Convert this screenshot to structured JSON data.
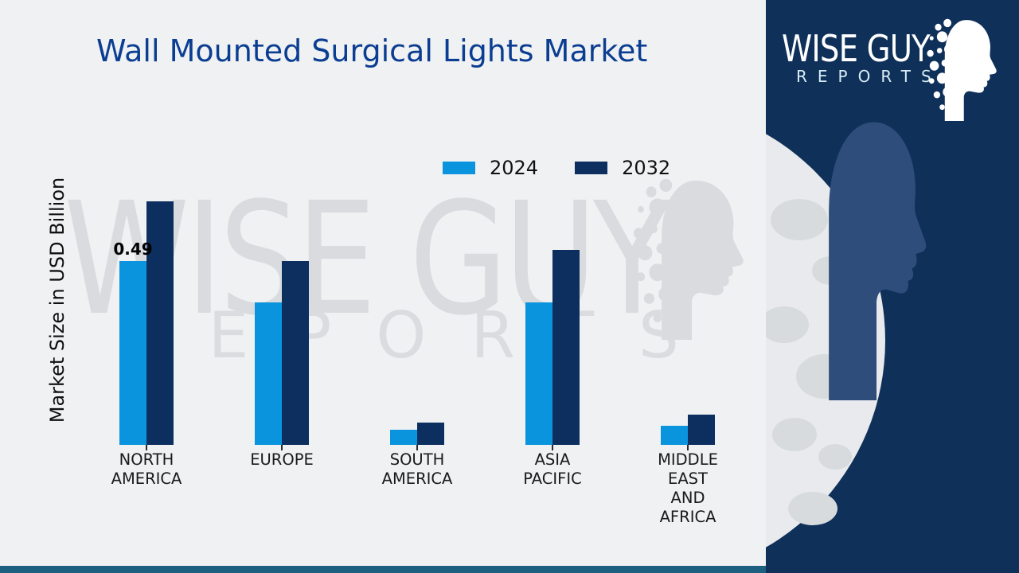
{
  "title": "Wall Mounted Surgical Lights Market",
  "ylabel": "Market Size in USD Billion",
  "watermark": {
    "line1": "WISE GUY",
    "line2": "REPORTS"
  },
  "brand": {
    "name": "WISE GUY",
    "subtitle": "REPORTS",
    "panel_color": "#0e3059",
    "strip_color": "#1d5f80"
  },
  "colors": {
    "background": "#f0f1f2",
    "title_text": "#0b3e92",
    "series_2024": "#0a94dd",
    "series_2032": "#0d2f60",
    "watermark": "#d9dbde"
  },
  "icons": {
    "brand_logo_face": "face-profile-dots-icon",
    "panel_face": "face-profile-silhouette-icon",
    "watermark_dots": "face-profile-dots-icon"
  },
  "chart_data": {
    "type": "bar",
    "title": "Wall Mounted Surgical Lights Market",
    "xlabel": "",
    "ylabel": "Market Size in USD Billion",
    "categories": [
      "NORTH AMERICA",
      "EUROPE",
      "SOUTH AMERICA",
      "ASIA PACIFIC",
      "MIDDLE EAST AND AFRICA"
    ],
    "series": [
      {
        "name": "2024",
        "color": "#0a94dd",
        "values": [
          0.49,
          0.38,
          0.04,
          0.38,
          0.05
        ]
      },
      {
        "name": "2032",
        "color": "#0d2f60",
        "values": [
          0.65,
          0.49,
          0.06,
          0.52,
          0.08
        ]
      }
    ],
    "annotations": [
      {
        "category": "NORTH AMERICA",
        "series": "2024",
        "text": "0.49"
      }
    ],
    "ylim": [
      0,
      0.7
    ],
    "grid": false,
    "legend_position": "top"
  }
}
